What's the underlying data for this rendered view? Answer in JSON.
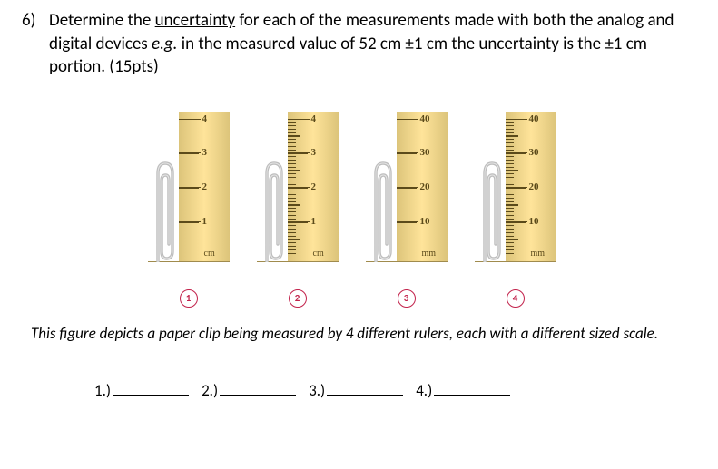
{
  "question": {
    "number": "6)",
    "text_before_under": "Determine the ",
    "under": "uncertainty",
    "text_after_under": " for each of the measurements made with both the analog and digital devices ",
    "eg": "e.g.",
    "text_after_eg": " in the measured value of 52 cm ±1 cm the uncertainty is the ±1 cm portion. (15pts)"
  },
  "rulers": [
    {
      "badge": "1",
      "unit": "cm",
      "labels": [
        "4",
        "3",
        "2",
        "1"
      ],
      "label_top_pct": [
        4,
        27,
        50,
        73
      ],
      "subdivisions": 0
    },
    {
      "badge": "2",
      "unit": "cm",
      "labels": [
        "4",
        "3",
        "2",
        "1"
      ],
      "label_top_pct": [
        4,
        27,
        50,
        73
      ],
      "subdivisions": 10
    },
    {
      "badge": "3",
      "unit": "mm",
      "labels": [
        "40",
        "30",
        "20",
        "10"
      ],
      "label_top_pct": [
        4,
        27,
        50,
        73
      ],
      "subdivisions": 0
    },
    {
      "badge": "4",
      "unit": "mm",
      "labels": [
        "40",
        "30",
        "20",
        "10"
      ],
      "label_top_pct": [
        4,
        27,
        50,
        73
      ],
      "subdivisions": 10
    }
  ],
  "caption": "This figure depicts a paper clip being measured by 4 different rulers, each with a different sized scale.",
  "answers": [
    "1.)",
    "2.)",
    "3.)",
    "4.)"
  ],
  "colors": {
    "ruler_grad": "#dcc47a",
    "accent": "#c2224b"
  }
}
